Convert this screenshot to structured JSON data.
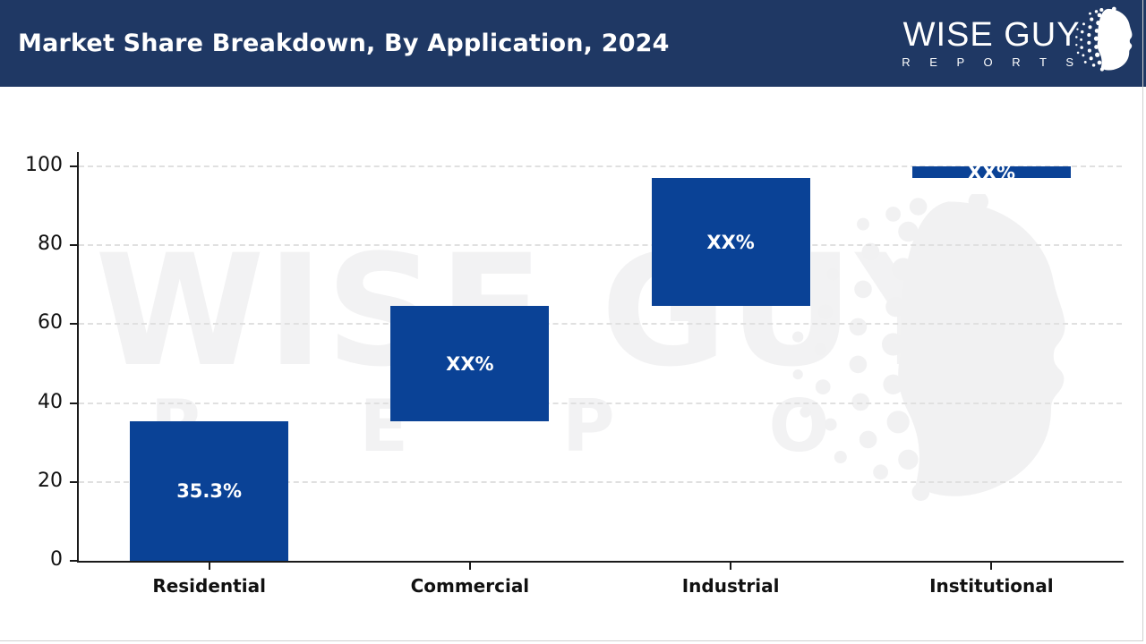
{
  "header": {
    "title": "Market Share Breakdown, By Application, 2024",
    "bg_color": "#1f3864",
    "logo": {
      "wordmark": "WISE GUY",
      "subtext": "R E P O R T S"
    }
  },
  "watermark": {
    "line1": "WISE GUY",
    "line2": "R E P O R T S"
  },
  "chart_data": {
    "type": "bar",
    "subtype": "waterfall",
    "title": "Market Share Breakdown, By Application, 2024",
    "categories": [
      "Residential",
      "Commercial",
      "Industrial",
      "Institutional"
    ],
    "segments": [
      {
        "category": "Residential",
        "start": 0,
        "end": 35.3,
        "label": "35.3%"
      },
      {
        "category": "Commercial",
        "start": 35.3,
        "end": 64.6,
        "label": "XX%"
      },
      {
        "category": "Industrial",
        "start": 64.6,
        "end": 97,
        "label": "XX%"
      },
      {
        "category": "Institutional",
        "start": 97,
        "end": 100,
        "label": "XX%"
      }
    ],
    "ylim": [
      0,
      100
    ],
    "yticks": [
      0,
      20,
      40,
      60,
      80,
      100
    ],
    "grid": true,
    "legend": false,
    "bar_color": "#0a4296",
    "bar_label_color": "#ffffff",
    "axis_color": "#1a1a1a",
    "grid_color": "#e0e0e0"
  }
}
